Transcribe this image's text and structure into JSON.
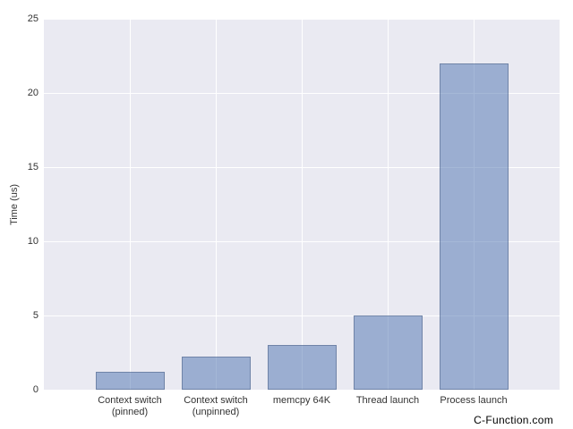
{
  "watermark": "C-Function.com",
  "chart_data": {
    "type": "bar",
    "title": "",
    "categories": [
      "Context switch\n(pinned)",
      "Context switch\n(unpinned)",
      "memcpy 64K",
      "Thread launch",
      "Process launch"
    ],
    "values": [
      1.2,
      2.2,
      3.0,
      5.0,
      22.0
    ],
    "xlabel": "",
    "ylabel": "Time (us)",
    "ylim": [
      0,
      25
    ],
    "yticks": [
      0,
      5,
      10,
      15,
      20,
      25
    ],
    "grid": true,
    "legend": false,
    "bar_width_fraction": 0.8,
    "colors": {
      "figure_bg": "#ffffff",
      "plot_bg": "#eaeaf2",
      "grid_line": "#ffffff",
      "bar_fill_rgba": "rgba(76,114,176,0.5)",
      "bar_edge_rgba": "rgba(47,69,108,0.4)",
      "tick_text": "#333333",
      "watermark_text": "#000000"
    }
  }
}
